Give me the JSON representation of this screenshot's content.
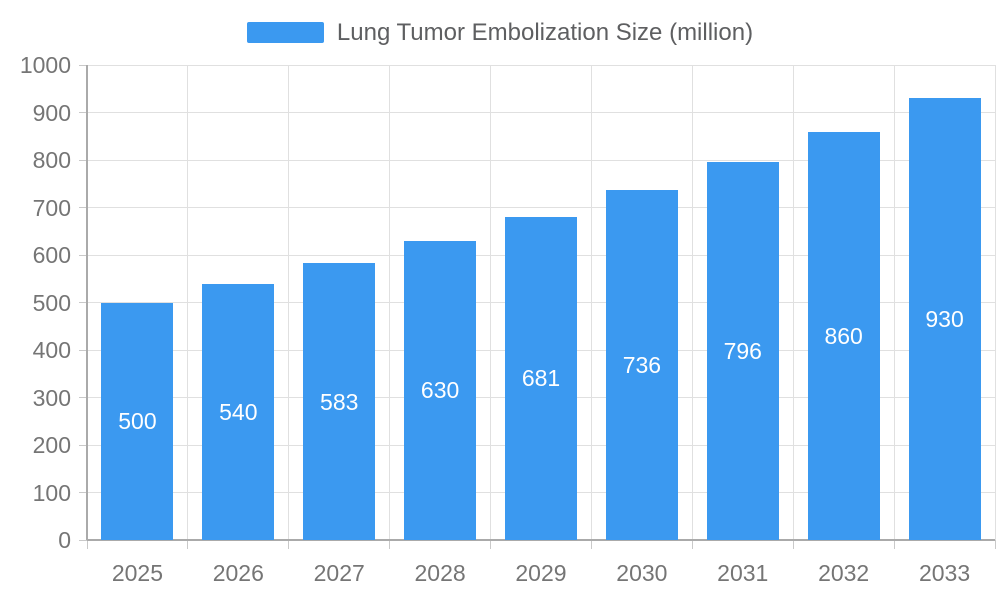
{
  "chart_data": {
    "type": "bar",
    "title": "Lung Tumor Embolization Size (million)",
    "categories": [
      "2025",
      "2026",
      "2027",
      "2028",
      "2029",
      "2030",
      "2031",
      "2032",
      "2033"
    ],
    "series": [
      {
        "name": "Lung Tumor Embolization Size (million)",
        "values": [
          500,
          540,
          583,
          630,
          681,
          736,
          796,
          860,
          930
        ]
      }
    ],
    "xlabel": "",
    "ylabel": "",
    "ylim": [
      0,
      1000
    ],
    "y_ticks": [
      0,
      100,
      200,
      300,
      400,
      500,
      600,
      700,
      800,
      900,
      1000
    ],
    "grid": true,
    "legend_position": "top-center",
    "bar_value_labels": "inside-center",
    "colors": {
      "bar": "#3B99F0",
      "grid_line": "#E0E0E0",
      "axis_line": "#AAAAAA",
      "axis_tick": "#C9C9C9",
      "tick_label": "#757575",
      "legend_text": "#5E5F61",
      "bar_label": "#FFFFFF",
      "background": "#FFFFFF"
    }
  }
}
